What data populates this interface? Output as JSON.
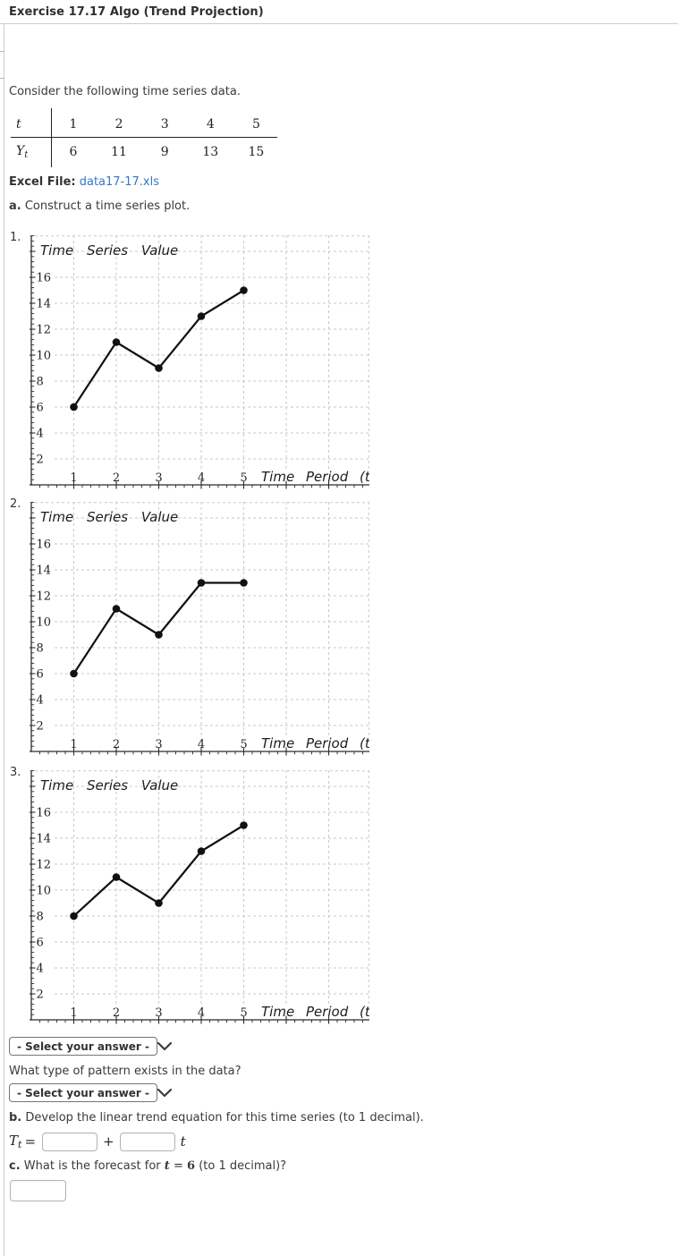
{
  "header": {
    "title": "Exercise 17.17 Algo (Trend Projection)"
  },
  "intro_text": "Consider the following time series data.",
  "data_table": {
    "row1": {
      "label": "t",
      "values": [
        "1",
        "2",
        "3",
        "4",
        "5"
      ]
    },
    "row2": {
      "label_base": "Y",
      "label_sub": "t",
      "values": [
        "6",
        "11",
        "9",
        "13",
        "15"
      ]
    }
  },
  "excel_file": {
    "label": "Excel File:",
    "link_text": "data17-17.xls",
    "link_color": "#3577c8"
  },
  "part_a": {
    "marker": "a.",
    "text": "Construct a time series plot."
  },
  "chart_data": [
    {
      "type": "line",
      "number": "1.",
      "title": "Time Series Value",
      "xlabel": "Time Period (t)",
      "x": [
        1,
        2,
        3,
        4,
        5
      ],
      "y": [
        6,
        11,
        9,
        13,
        15
      ],
      "xlim": [
        0,
        8
      ],
      "ylim": [
        0,
        19.3
      ],
      "x_ticks": [
        1,
        2,
        3,
        4,
        5
      ],
      "y_ticks": [
        2,
        4,
        6,
        8,
        10,
        12,
        14,
        16
      ],
      "grid": "dashed",
      "marker_style": "filled-circle",
      "series_color": "#111111",
      "grid_color": "#c9c9c9",
      "axis_color": "#2b2b2b"
    },
    {
      "type": "line",
      "number": "2.",
      "title": "Time Series Value",
      "xlabel": "Time Period (t)",
      "x": [
        1,
        2,
        3,
        4,
        5
      ],
      "y": [
        6,
        11,
        9,
        13,
        13
      ],
      "xlim": [
        0,
        8
      ],
      "ylim": [
        0,
        19.3
      ],
      "x_ticks": [
        1,
        2,
        3,
        4,
        5
      ],
      "y_ticks": [
        2,
        4,
        6,
        8,
        10,
        12,
        14,
        16
      ],
      "grid": "dashed",
      "marker_style": "filled-circle",
      "series_color": "#111111",
      "grid_color": "#c9c9c9",
      "axis_color": "#2b2b2b"
    },
    {
      "type": "line",
      "number": "3.",
      "title": "Time Series Value",
      "xlabel": "Time Period (t)",
      "x": [
        1,
        2,
        3,
        4,
        5
      ],
      "y": [
        8,
        11,
        9,
        13,
        15
      ],
      "xlim": [
        0,
        8
      ],
      "ylim": [
        0,
        19.3
      ],
      "x_ticks": [
        1,
        2,
        3,
        4,
        5
      ],
      "y_ticks": [
        2,
        4,
        6,
        8,
        10,
        12,
        14,
        16
      ],
      "grid": "dashed",
      "marker_style": "filled-circle",
      "series_color": "#111111",
      "grid_color": "#c9c9c9",
      "axis_color": "#2b2b2b"
    }
  ],
  "select_placeholder": "- Select your answer -",
  "pattern_question": "What type of pattern exists in the data?",
  "part_b": {
    "marker": "b.",
    "text": "Develop the linear trend equation for this time series (to 1 decimal)."
  },
  "equation": {
    "lhs_base": "T",
    "lhs_sub": "t",
    "equals": "=",
    "plus": "+",
    "variable": "t",
    "input1_value": "",
    "input2_value": ""
  },
  "part_c": {
    "marker": "c.",
    "text_before": "What is the forecast for",
    "var": "t",
    "equals": "=",
    "value": "6",
    "text_after": "(to 1 decimal)?",
    "answer_value": ""
  }
}
